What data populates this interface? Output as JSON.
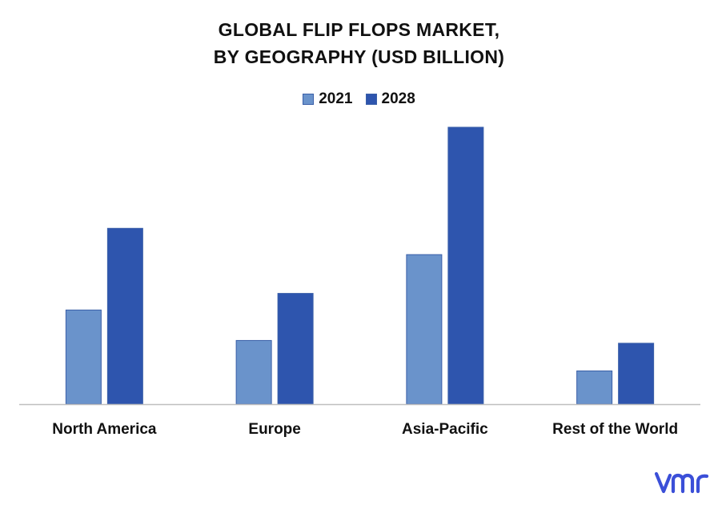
{
  "chart_data": {
    "type": "bar",
    "title_lines": [
      "GLOBAL FLIP FLOPS MARKET,",
      "BY GEOGRAPHY (USD BILLION)"
    ],
    "categories": [
      "North America",
      "Europe",
      "Asia-Pacific",
      "Rest of the World"
    ],
    "series": [
      {
        "name": "2021",
        "values": [
          3.4,
          2.3,
          5.4,
          1.2
        ],
        "color": "#6a93cb"
      },
      {
        "name": "2028",
        "values": [
          6.35,
          4.0,
          10.0,
          2.2
        ],
        "color": "#2e55ae"
      }
    ],
    "ylim": [
      0,
      10
    ],
    "grid": false,
    "legend_position": "top-center"
  },
  "logo": {
    "text": "vmr",
    "color": "#3b4fd8"
  }
}
